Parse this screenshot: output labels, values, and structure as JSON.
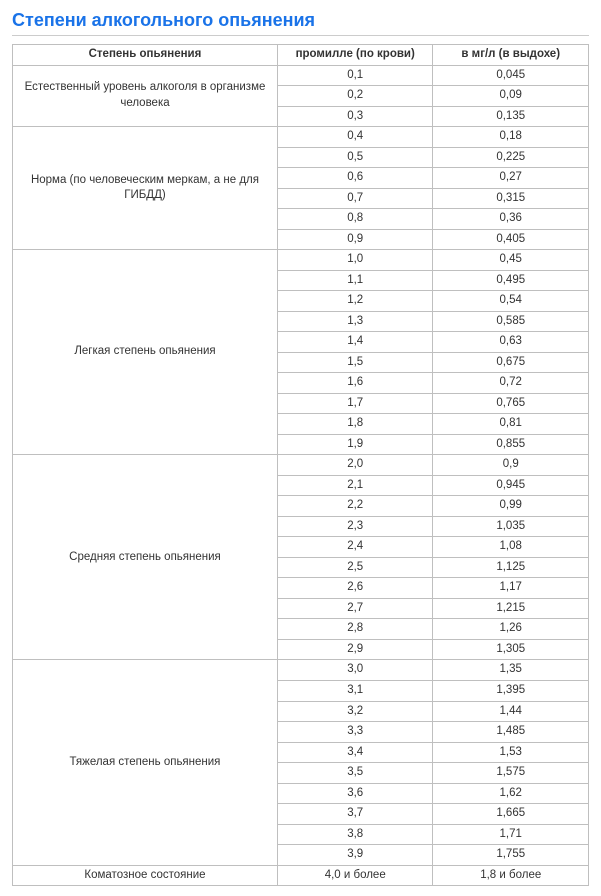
{
  "title": "Степени алкогольного опьянения",
  "table": {
    "columns": [
      "Степень опьянения",
      "промилле (по крови)",
      "в мг/л (в выдохе)"
    ],
    "col_widths_pct": [
      46,
      27,
      27
    ],
    "border_color": "#bfbfbf",
    "header_bg": "#ffffff",
    "groups": [
      {
        "label": "Естественный уровень алкоголя в организме человека",
        "rows": [
          [
            "0,1",
            "0,045"
          ],
          [
            "0,2",
            "0,09"
          ],
          [
            "0,3",
            "0,135"
          ]
        ]
      },
      {
        "label": "Норма (по человеческим меркам, а не для ГИБДД)",
        "rows": [
          [
            "0,4",
            "0,18"
          ],
          [
            "0,5",
            "0,225"
          ],
          [
            "0,6",
            "0,27"
          ],
          [
            "0,7",
            "0,315"
          ],
          [
            "0,8",
            "0,36"
          ],
          [
            "0,9",
            "0,405"
          ]
        ]
      },
      {
        "label": "Легкая степень опьянения",
        "rows": [
          [
            "1,0",
            "0,45"
          ],
          [
            "1,1",
            "0,495"
          ],
          [
            "1,2",
            "0,54"
          ],
          [
            "1,3",
            "0,585"
          ],
          [
            "1,4",
            "0,63"
          ],
          [
            "1,5",
            "0,675"
          ],
          [
            "1,6",
            "0,72"
          ],
          [
            "1,7",
            "0,765"
          ],
          [
            "1,8",
            "0,81"
          ],
          [
            "1,9",
            "0,855"
          ]
        ]
      },
      {
        "label": "Средняя степень опьянения",
        "rows": [
          [
            "2,0",
            "0,9"
          ],
          [
            "2,1",
            "0,945"
          ],
          [
            "2,2",
            "0,99"
          ],
          [
            "2,3",
            "1,035"
          ],
          [
            "2,4",
            "1,08"
          ],
          [
            "2,5",
            "1,125"
          ],
          [
            "2,6",
            "1,17"
          ],
          [
            "2,7",
            "1,215"
          ],
          [
            "2,8",
            "1,26"
          ],
          [
            "2,9",
            "1,305"
          ]
        ]
      },
      {
        "label": "Тяжелая степень опьянения",
        "rows": [
          [
            "3,0",
            "1,35"
          ],
          [
            "3,1",
            "1,395"
          ],
          [
            "3,2",
            "1,44"
          ],
          [
            "3,3",
            "1,485"
          ],
          [
            "3,4",
            "1,53"
          ],
          [
            "3,5",
            "1,575"
          ],
          [
            "3,6",
            "1,62"
          ],
          [
            "3,7",
            "1,665"
          ],
          [
            "3,8",
            "1,71"
          ],
          [
            "3,9",
            "1,755"
          ]
        ]
      },
      {
        "label": "Коматозное состояние",
        "rows": [
          [
            "4,0 и более",
            "1,8 и более"
          ]
        ]
      }
    ]
  },
  "title_color": "#1a73e8"
}
